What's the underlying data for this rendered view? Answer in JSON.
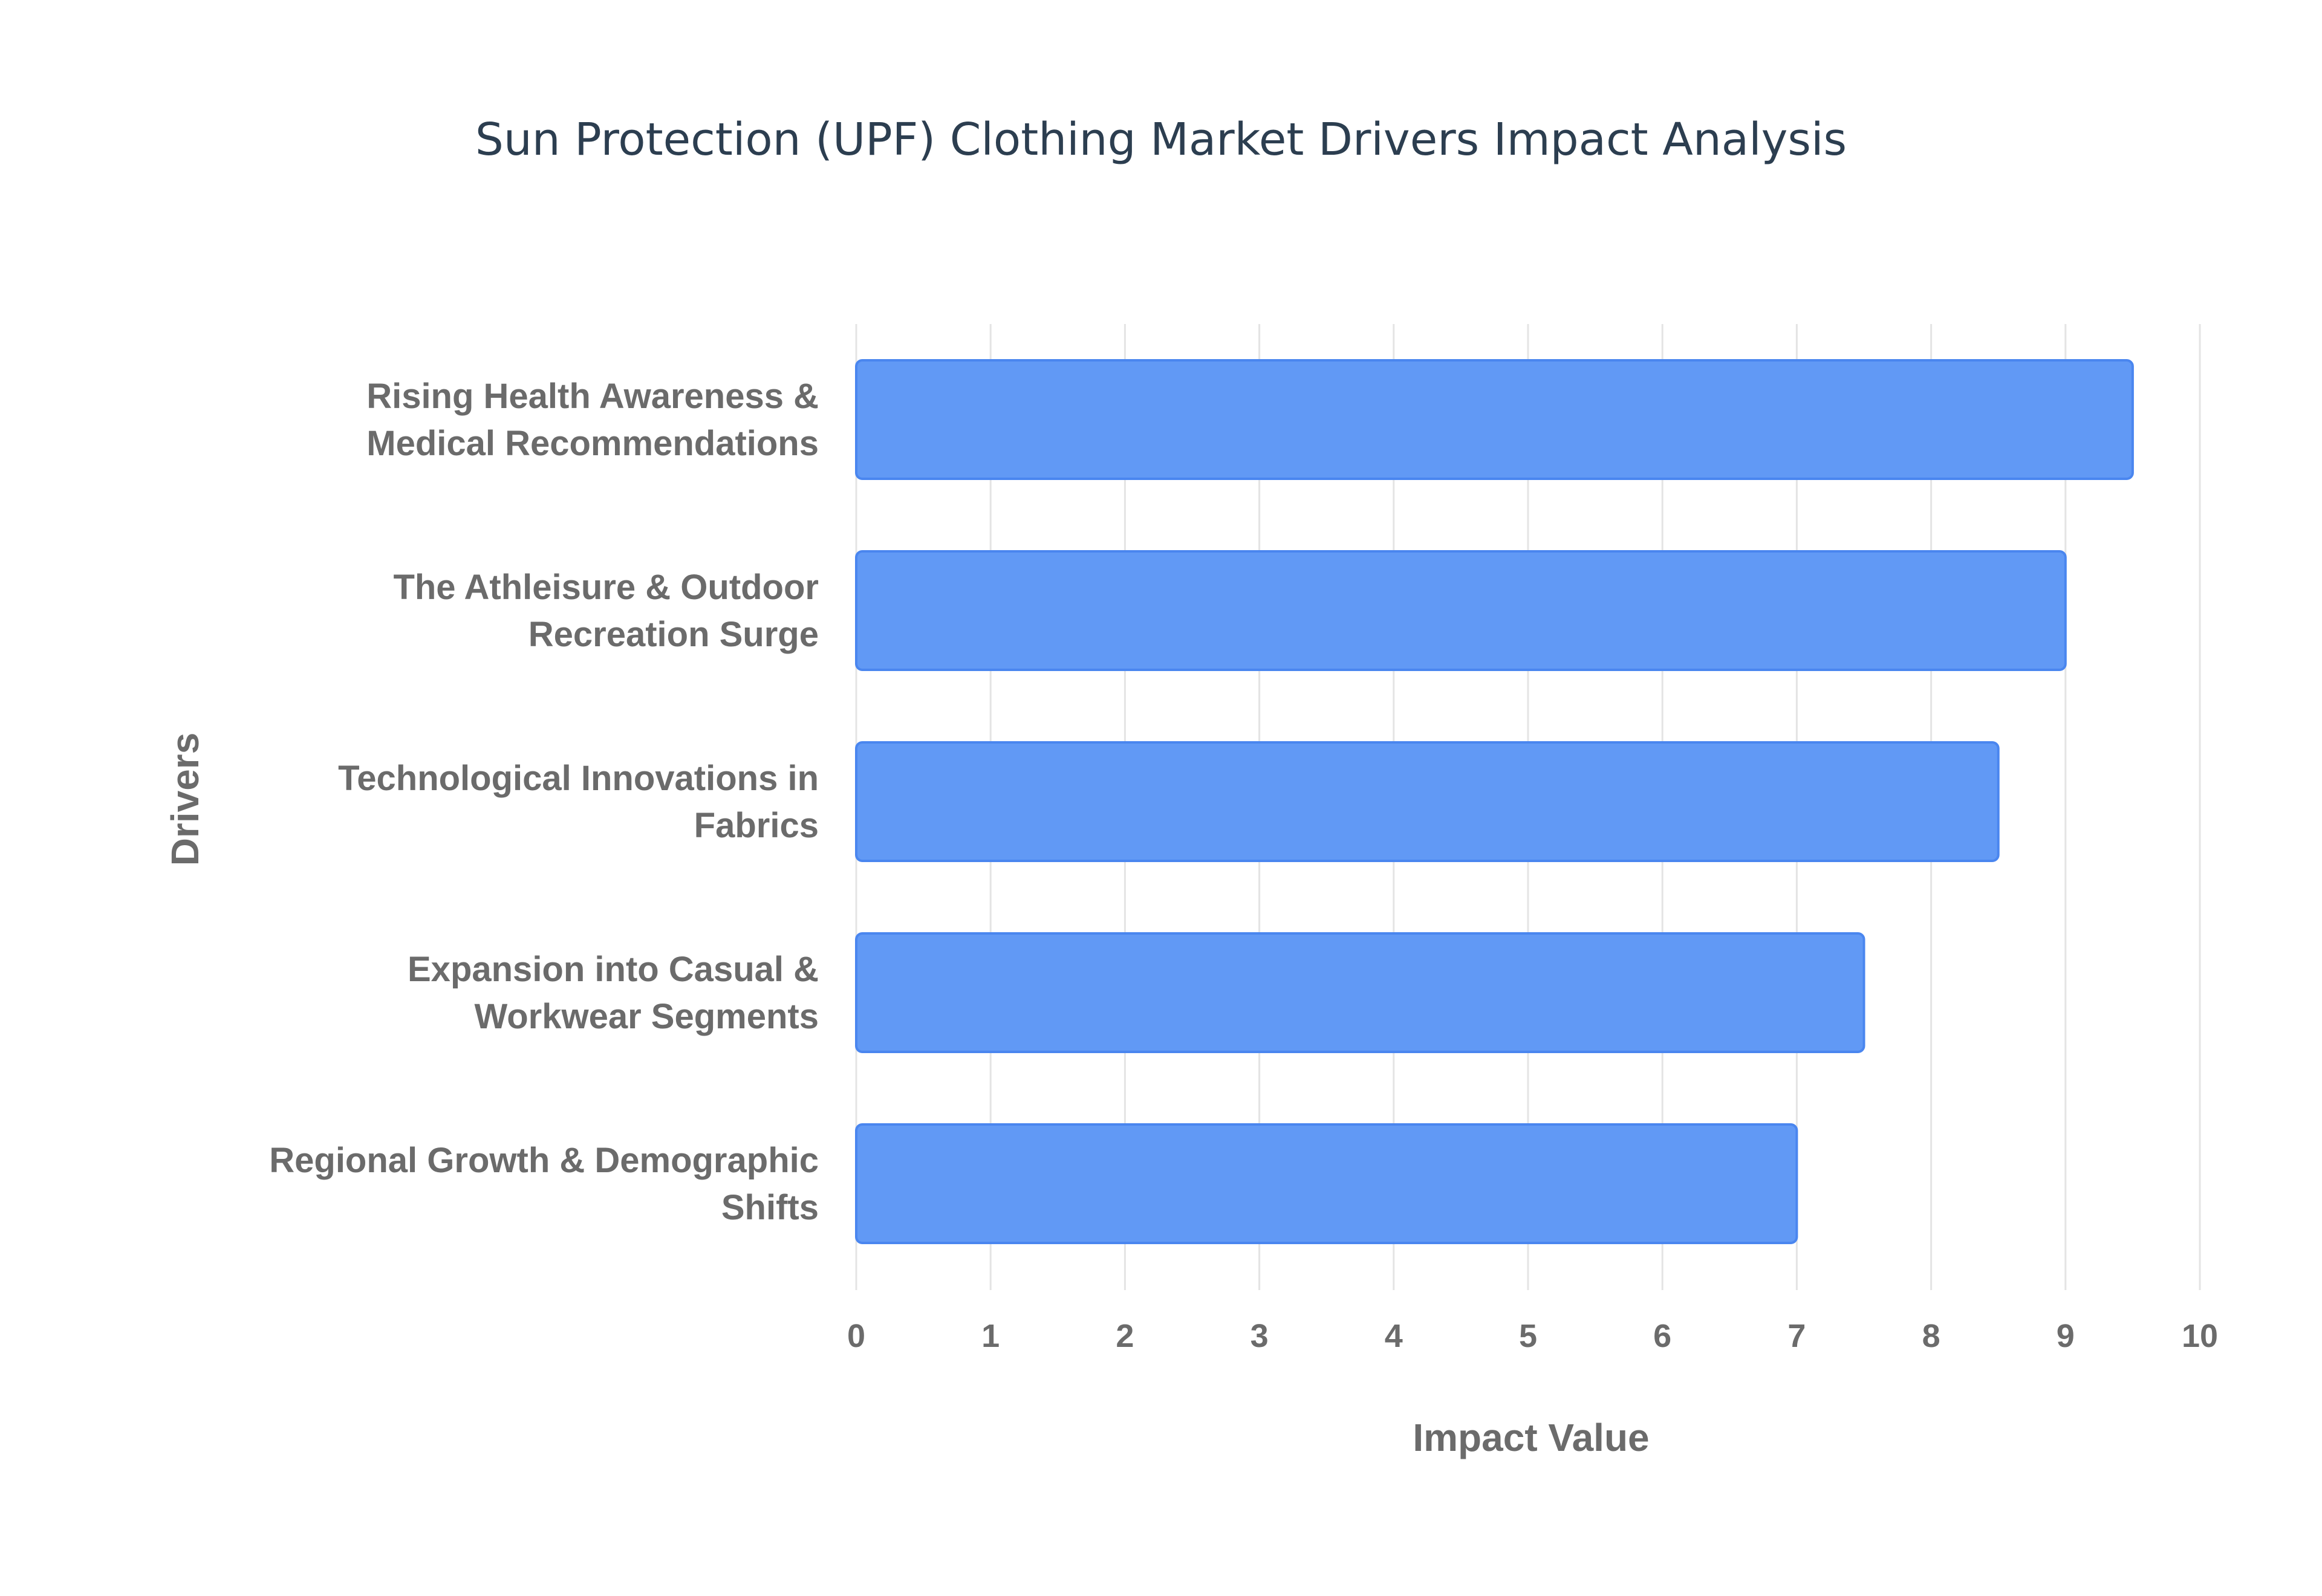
{
  "chart_data": {
    "type": "bar",
    "orientation": "horizontal",
    "title": "Sun Protection (UPF) Clothing Market Drivers Impact Analysis",
    "xlabel": "Impact Value",
    "ylabel": "Drivers",
    "xlim": [
      0,
      10
    ],
    "x_ticks": [
      "0",
      "1",
      "2",
      "3",
      "4",
      "5",
      "6",
      "7",
      "8",
      "9",
      "10"
    ],
    "grid": true,
    "categories": [
      [
        "Rising Health Awareness &",
        "Medical Recommendations"
      ],
      [
        "The Athleisure & Outdoor",
        "Recreation Surge"
      ],
      [
        "Technological Innovations in",
        "Fabrics"
      ],
      [
        "Expansion into Casual &",
        "Workwear Segments"
      ],
      [
        "Regional Growth & Demographic",
        "Shifts"
      ]
    ],
    "values": [
      9.5,
      9.0,
      8.5,
      7.5,
      7.0
    ],
    "bar_color": "#6199f5",
    "bar_edge_color": "#4a86ef"
  }
}
